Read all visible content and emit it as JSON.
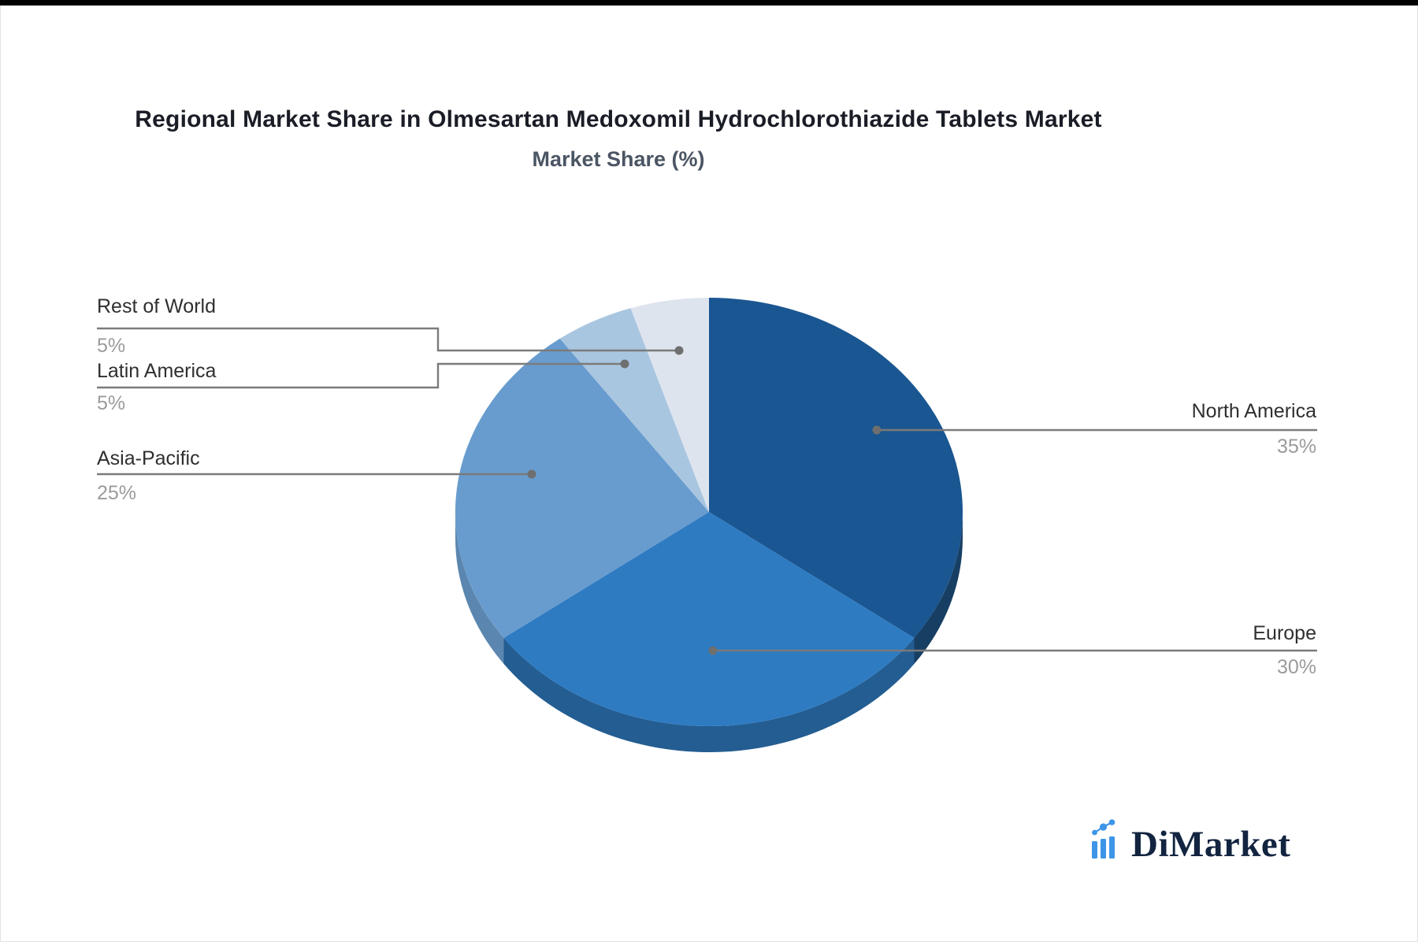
{
  "title": {
    "text": "Regional Market Share in Olmesartan Medoxomil Hydrochlorothiazide Tablets Market",
    "color": "#1a1d26"
  },
  "subtitle": {
    "text": "Market Share (%)",
    "color": "#4b5563"
  },
  "chart_data": {
    "type": "pie",
    "style": "3d",
    "title": "Regional Market Share in Olmesartan Medoxomil Hydrochlorothiazide Tablets Market",
    "subtitle": "Market Share (%)",
    "unit": "%",
    "start_angle_deg": 0,
    "direction": "clockwise",
    "legend_position": "none",
    "slices": [
      {
        "label": "North America",
        "value": 35,
        "display": "35%",
        "color": "#1A5691",
        "side_color": "#173E63"
      },
      {
        "label": "Europe",
        "value": 30,
        "display": "30%",
        "color": "#2E7BC2",
        "side_color": "#235D92"
      },
      {
        "label": "Asia-Pacific",
        "value": 25,
        "display": "25%",
        "color": "#689CCE",
        "side_color": "#5B86AF"
      },
      {
        "label": "Latin America",
        "value": 5,
        "display": "5%",
        "color": "#A9C6E1"
      },
      {
        "label": "Rest of World",
        "value": 5,
        "display": "5%",
        "color": "#DEE4EE"
      }
    ],
    "label_colors": {
      "name": "#2f2f2f",
      "percent": "#9b9b9b",
      "leader_line": "#7b7b7b",
      "leader_dot": "#6f6f6f"
    }
  },
  "branding": {
    "logo_text": "DiMarket",
    "icon": "bar-line-chart-icon",
    "icon_color": "#3D95E8",
    "text_color": "#132440"
  }
}
